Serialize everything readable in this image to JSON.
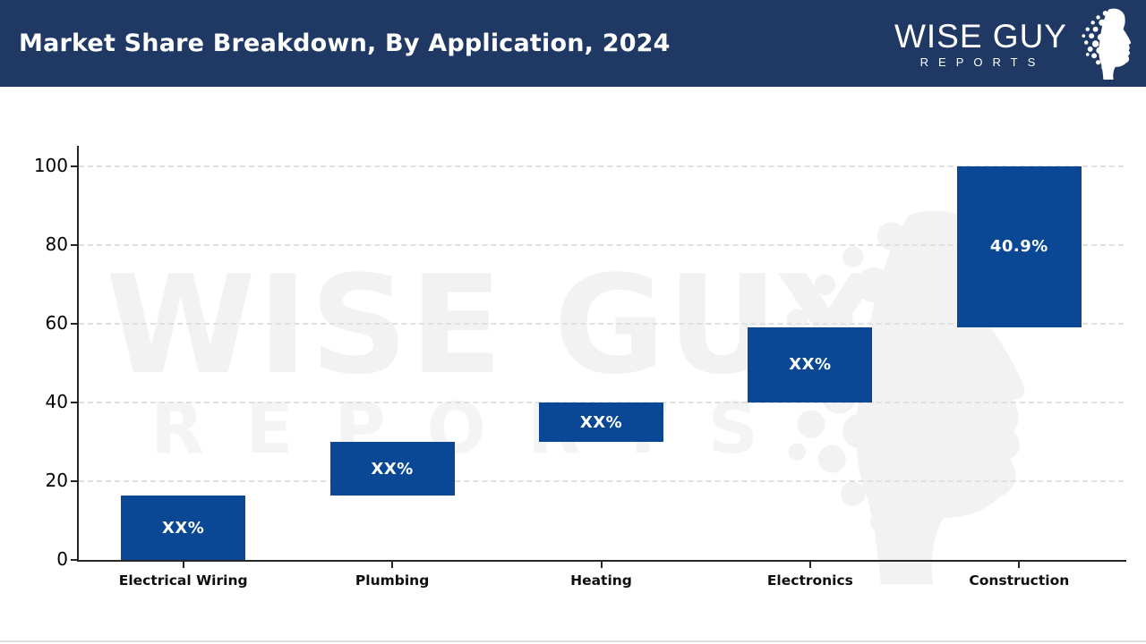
{
  "header": {
    "title": "Market Share Breakdown, By Application, 2024"
  },
  "logo": {
    "line1": "WISE GUY",
    "line2": "REPORTS"
  },
  "watermark": {
    "line1": "WISE GUY",
    "line2": "REPORTS"
  },
  "chart_data": {
    "type": "bar",
    "subtype": "waterfall",
    "title": "Market Share Breakdown, By Application, 2024",
    "categories": [
      "Electrical Wiring",
      "Plumbing",
      "Heating",
      "Electronics",
      "Construction"
    ],
    "segments": [
      {
        "category": "Electrical Wiring",
        "start": 0,
        "end": 16.3,
        "label": "XX%"
      },
      {
        "category": "Plumbing",
        "start": 16.3,
        "end": 30.0,
        "label": "XX%"
      },
      {
        "category": "Heating",
        "start": 30.0,
        "end": 40.0,
        "label": "XX%"
      },
      {
        "category": "Electronics",
        "start": 40.0,
        "end": 59.1,
        "label": "XX%"
      },
      {
        "category": "Construction",
        "start": 59.1,
        "end": 100.0,
        "label": "40.9%"
      }
    ],
    "xlabel": "",
    "ylabel": "",
    "ylim": [
      0,
      100
    ],
    "yticks": [
      0,
      20,
      40,
      60,
      80,
      100
    ],
    "grid": "horizontal-dashed",
    "legend": "none",
    "colors": {
      "bar": "#0a4896",
      "bar_label": "#ffffff",
      "header_bg": "#1f3864",
      "grid_line": "#e0e0e0",
      "axis_line": "#262626",
      "watermark": "#f2f2f2"
    }
  }
}
